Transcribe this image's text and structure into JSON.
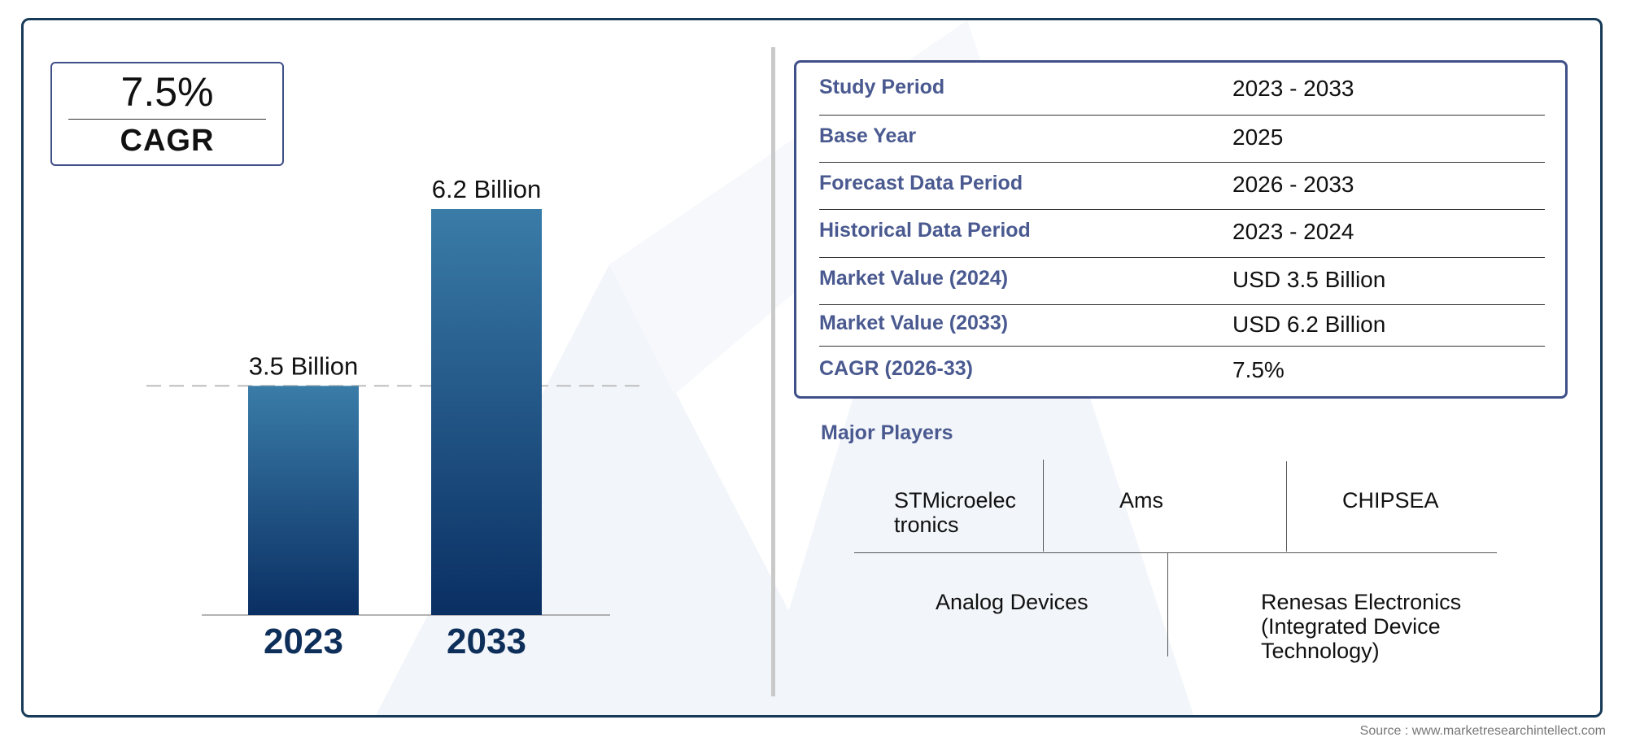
{
  "cagr": {
    "value": "7.5%",
    "label": "CAGR"
  },
  "chart_data": {
    "type": "bar",
    "categories": [
      "2023",
      "2033"
    ],
    "values": [
      3.5,
      6.2
    ],
    "data_labels": [
      "3.5 Billion",
      "6.2 Billion"
    ],
    "unit": "Billion",
    "title": "",
    "xlabel": "",
    "ylabel": "",
    "ylim": [
      0,
      6.2
    ],
    "grid": false,
    "reference_line": {
      "style": "dashed",
      "at_value": 3.5
    },
    "colors": {
      "bar_top": "#3a7ca8",
      "bar_bottom": "#0a2f63",
      "category_label": "#0e2f5a"
    }
  },
  "summary": {
    "rows": [
      {
        "label": "Study Period",
        "value": "2023 - 2033"
      },
      {
        "label": "Base Year",
        "value": "2025"
      },
      {
        "label": "Forecast Data Period",
        "value": "2026 - 2033"
      },
      {
        "label": "Historical Data Period",
        "value": "2023 - 2024"
      },
      {
        "label": "Market Value (2024)",
        "value": "USD 3.5 Billion"
      },
      {
        "label": "Market Value (2033)",
        "value": "USD 6.2 Billion"
      },
      {
        "label": "CAGR (2026-33)",
        "value": "7.5%"
      }
    ]
  },
  "players": {
    "title": "Major Players",
    "items": [
      "STMicroelec tronics",
      "Ams",
      "CHIPSEA",
      "Analog Devices",
      "Renesas Electronics (Integrated Device Technology)"
    ],
    "item_lines": [
      [
        "STMicroelec",
        "tronics"
      ],
      [
        "Ams"
      ],
      [
        "CHIPSEA"
      ],
      [
        "Analog Devices"
      ],
      [
        "Renesas Electronics",
        "(Integrated Device",
        "Technology)"
      ]
    ]
  },
  "source": "Source : www.marketresearchintellect.com",
  "colors": {
    "frame": "#163a57",
    "accent": "#4a5a90",
    "box_border": "#3f4f88"
  }
}
